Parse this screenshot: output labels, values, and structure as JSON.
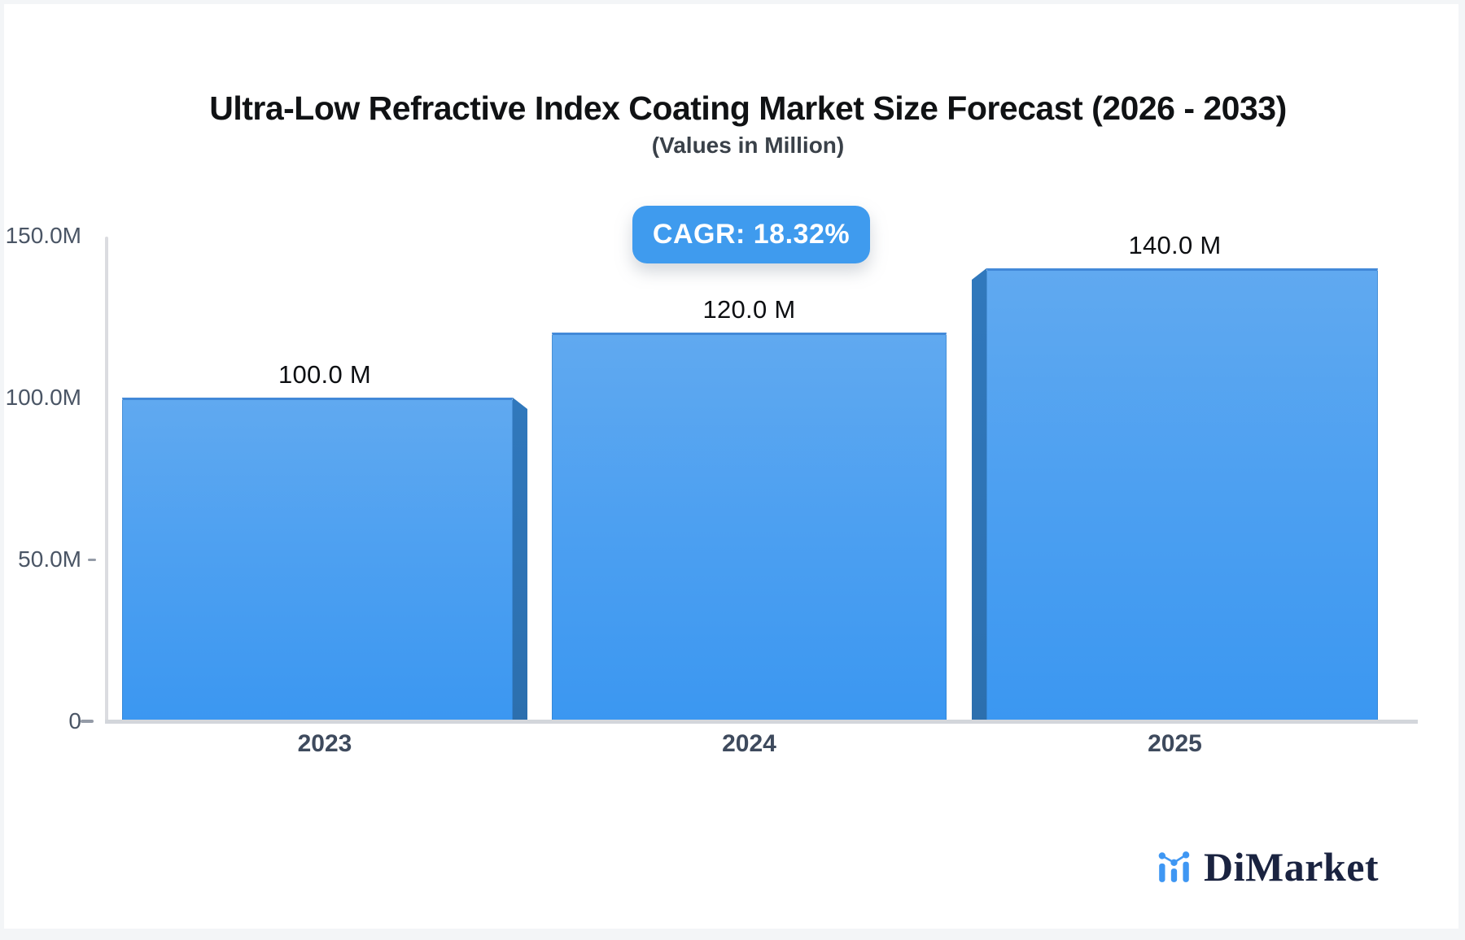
{
  "header": {
    "title": "Ultra-Low Refractive Index Coating Market Size Forecast (2026 - 2033)",
    "subtitle": "(Values in Million)"
  },
  "badge": {
    "label": "CAGR: 18.32%"
  },
  "chart_data": {
    "type": "bar",
    "title": "Ultra-Low Refractive Index Coating Market Size Forecast (2026 - 2033)",
    "subtitle": "(Values in Million)",
    "unit": "Million",
    "cagr_percent": 18.32,
    "categories": [
      "2023",
      "2024",
      "2025"
    ],
    "values": [
      100.0,
      120.0,
      140.0
    ],
    "value_labels": [
      "100.0 M",
      "120.0 M",
      "140.0 M"
    ],
    "y_ticks": [
      {
        "label": "150.0M",
        "value": 150,
        "tick": false
      },
      {
        "label": "100.0M",
        "value": 100,
        "tick": false
      },
      {
        "label": "50.0M",
        "value": 50,
        "tick": true
      },
      {
        "label": "0",
        "value": 0,
        "tick": true
      }
    ],
    "ylim": [
      0,
      150
    ],
    "grid": false,
    "legend": false,
    "colors": {
      "bar_top": "#60a9f0",
      "bar_bottom": "#3b97f1",
      "bar_side": "#2d73b7",
      "badge_background": "#3f9bee",
      "axis_line": "#d6d8dc",
      "label_text": "#3e4a5d"
    }
  },
  "logo": {
    "text": "DiMarket",
    "icon": "bar-chart-logo-icon",
    "icon_color": "#3f97f3"
  }
}
